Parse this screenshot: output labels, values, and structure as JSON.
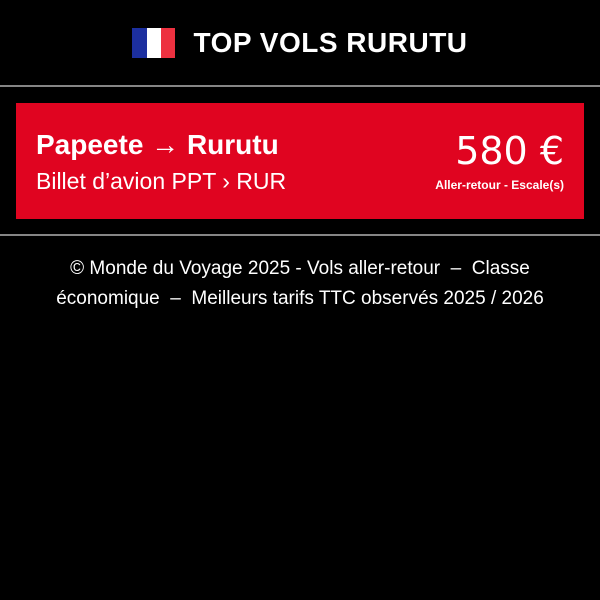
{
  "header": {
    "title": "TOP VOLS RURUTU",
    "flag_icon": "france-flag"
  },
  "deal_card": {
    "route": "Papeete → Rurutu",
    "description": "Billet d’avion PPT › RUR",
    "price": "580 €",
    "conditions": "Aller-retour - Escale(s)"
  },
  "footer": {
    "line1": "© Monde du Voyage 2025 - Vols aller-retour  –  Classe",
    "line2": "économique  –  Meilleurs tarifs TTC observés 2025 / 2026"
  },
  "colors": {
    "background": "#000000",
    "card_red": "#E00420",
    "divider_gray": "#858585",
    "text_white": "#FFFFFF",
    "flag_blue": "#1C2F9F",
    "flag_white": "#FFFFFF",
    "flag_red": "#ED3140"
  }
}
